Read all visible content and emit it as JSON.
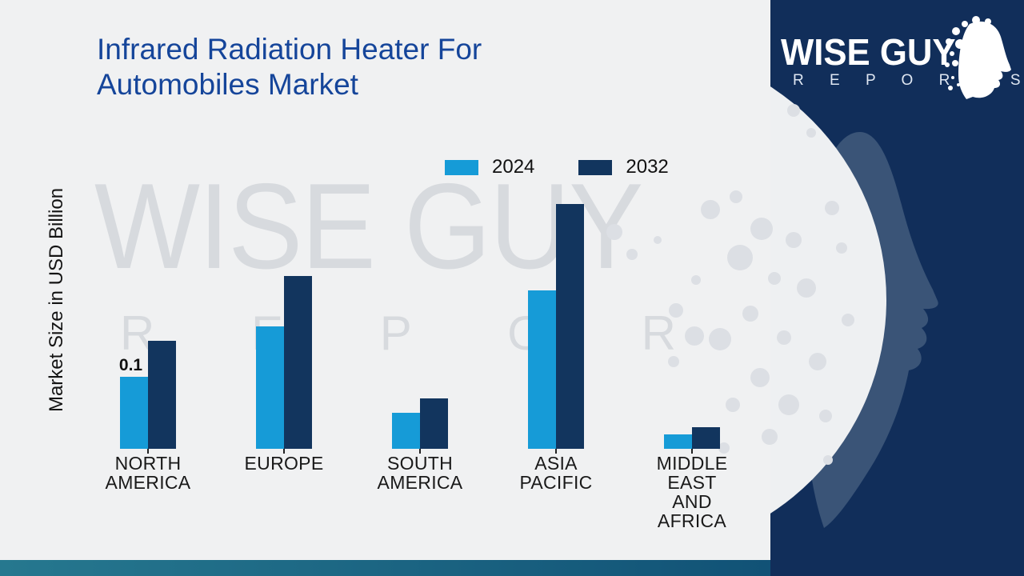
{
  "title": "Infrared Radiation Heater For Automobiles Market",
  "ylabel": "Market Size in USD Billion",
  "watermark": {
    "line1": "WISE GUY",
    "line2": "R E P O R T S"
  },
  "brand": {
    "name": "WISE GUY",
    "sub": "R E P O R T S"
  },
  "colors": {
    "background": "#f0f1f2",
    "panel_navy": "#112e5a",
    "face_blob": "#3a5477",
    "series_2024": "#169bd7",
    "series_2032": "#12355e",
    "title_blue": "#15459a",
    "watermark_gray": "#d7dade",
    "footer_teal_left": "#26788f",
    "footer_teal_right": "#115276"
  },
  "chart_data": {
    "type": "bar",
    "title": "Infrared Radiation Heater For Automobiles Market",
    "xlabel": "",
    "ylabel": "Market Size in USD Billion",
    "units": "USD Billion",
    "grid": false,
    "legend_position": "top",
    "ylim": [
      0,
      0.4
    ],
    "categories": [
      "NORTH AMERICA",
      "EUROPE",
      "SOUTH AMERICA",
      "ASIA PACIFIC",
      "MIDDLE EAST AND AFRICA"
    ],
    "categories_lines": [
      [
        "NORTH",
        "AMERICA"
      ],
      [
        "EUROPE"
      ],
      [
        "SOUTH",
        "AMERICA"
      ],
      [
        "ASIA",
        "PACIFIC"
      ],
      [
        "MIDDLE",
        "EAST",
        "AND",
        "AFRICA"
      ]
    ],
    "series": [
      {
        "name": "2024",
        "color": "#169bd7",
        "values": [
          0.1,
          0.17,
          0.05,
          0.22,
          0.02
        ]
      },
      {
        "name": "2032",
        "color": "#12355e",
        "values": [
          0.15,
          0.24,
          0.07,
          0.34,
          0.03
        ]
      }
    ],
    "data_labels": [
      {
        "category_index": 0,
        "series_index": 0,
        "text": "0.1"
      }
    ]
  }
}
